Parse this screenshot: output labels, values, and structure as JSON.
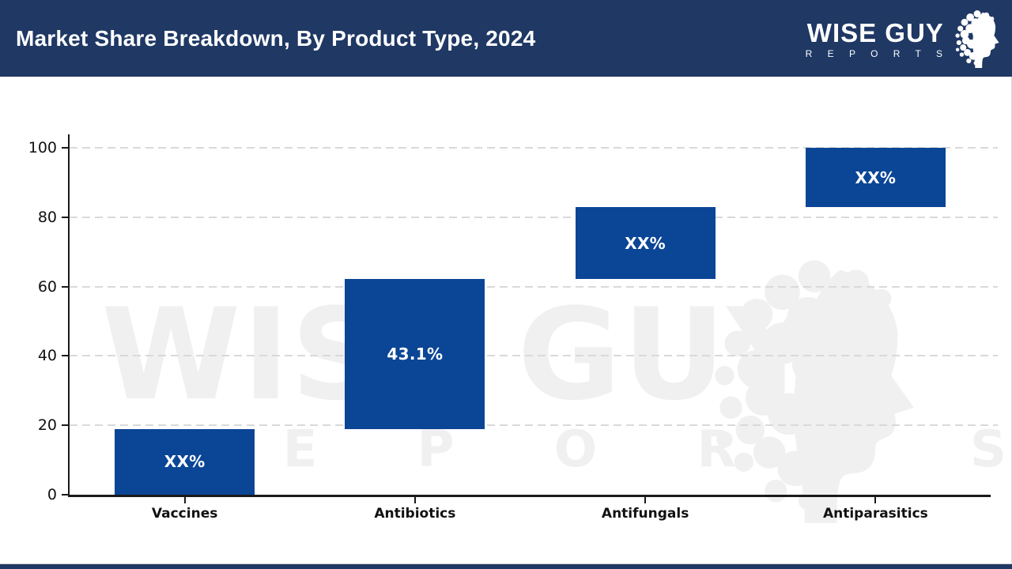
{
  "header": {
    "title": "Market Share Breakdown, By Product Type, 2024",
    "logo": {
      "line1": "WISE GUY",
      "line2": "R E P O R T S"
    }
  },
  "watermark": {
    "line1": "WISE GUY",
    "line2": "R E P O R T S"
  },
  "colors": {
    "header_navy": "#1f3864",
    "bar_blue": "#0b4596",
    "bar_label_white": "#ffffff",
    "watermark_gray": "#f0f0f1",
    "gridline_gray": "#d9d9d9",
    "axis_black": "#1a1a1a"
  },
  "chart_data": {
    "type": "bar",
    "subtype": "waterfall",
    "title": "Market Share Breakdown, By Product Type, 2024",
    "categories": [
      "Vaccines",
      "Antibiotics",
      "Antifungals",
      "Antiparasitics"
    ],
    "bars": [
      {
        "category": "Vaccines",
        "start": 0,
        "end": 19,
        "label": "XX%"
      },
      {
        "category": "Antibiotics",
        "start": 19,
        "end": 62.1,
        "label": "43.1%",
        "shown_value": 43.1
      },
      {
        "category": "Antifungals",
        "start": 62.1,
        "end": 82.9,
        "label": "XX%"
      },
      {
        "category": "Antiparasitics",
        "start": 82.9,
        "end": 100,
        "label": "XX%"
      }
    ],
    "ylim": [
      0,
      100
    ],
    "yticks": [
      0,
      20,
      40,
      60,
      80,
      100
    ],
    "xlabel": "",
    "ylabel": "",
    "grid": "horizontal-dashed",
    "legend": "none"
  }
}
